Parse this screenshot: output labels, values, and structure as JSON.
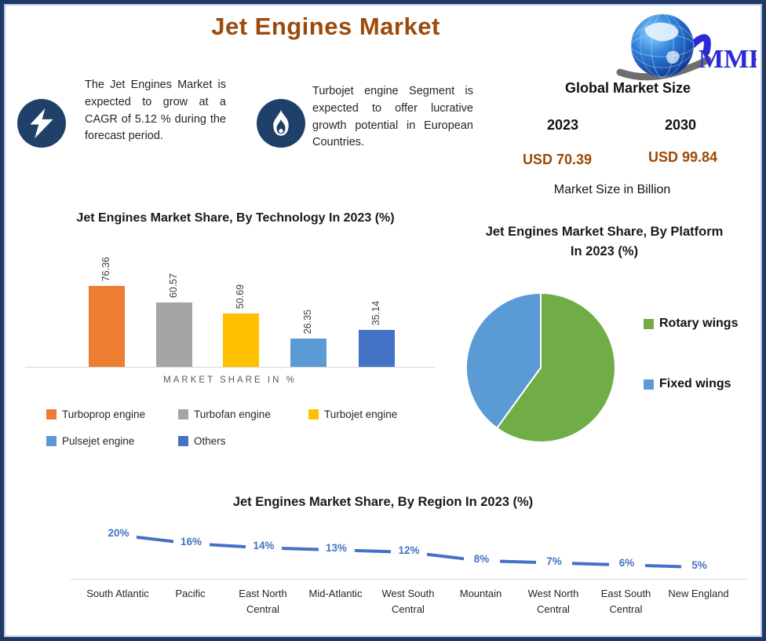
{
  "header": {
    "title": "Jet Engines Market",
    "logo_text": "MMR"
  },
  "callouts": [
    {
      "icon": "lightning-icon",
      "text": "The Jet Engines Market is expected to grow at a CAGR of 5.12 % during the forecast period."
    },
    {
      "icon": "flame-icon",
      "text": "Turbojet engine Segment is expected to offer lucrative growth potential in European Countries."
    }
  ],
  "market_size": {
    "heading": "Global Market Size",
    "years": [
      "2023",
      "2030"
    ],
    "values": [
      "USD 70.39",
      "USD 99.84"
    ],
    "note": "Market Size in Billion"
  },
  "chart_data": [
    {
      "type": "bar",
      "title": "Jet Engines Market Share, By Technology In 2023 (%)",
      "categories": [
        "Turboprop engine",
        "Turbofan engine",
        "Turbojet engine",
        "Pulsejet engine",
        "Others"
      ],
      "values": [
        76.36,
        60.57,
        50.69,
        26.35,
        35.14
      ],
      "colors": [
        "#ED7D31",
        "#A5A5A5",
        "#FFC000",
        "#5B9BD5",
        "#4472C4"
      ],
      "xlabel": "MARKET SHARE IN %",
      "ylim": [
        0,
        90
      ],
      "grid": false,
      "legend_position": "bottom"
    },
    {
      "type": "pie",
      "title": "Jet Engines Market Share, By Platform In 2023 (%)",
      "slices": [
        {
          "label": "Rotary wings",
          "value": 60,
          "color": "#70AD47"
        },
        {
          "label": "Fixed wings",
          "value": 40,
          "color": "#5B9BD5"
        }
      ],
      "legend_position": "right"
    },
    {
      "type": "line",
      "title": "Jet Engines Market Share, By Region In 2023 (%)",
      "categories": [
        "South Atlantic",
        "Pacific",
        "East North Central",
        "Mid-Atlantic",
        "West South Central",
        "Mountain",
        "West North Central",
        "East South Central",
        "New England"
      ],
      "values": [
        20,
        16,
        14,
        13,
        12,
        8,
        7,
        6,
        5
      ],
      "labels": [
        "20%",
        "16%",
        "14%",
        "13%",
        "12%",
        "8%",
        "7%",
        "6%",
        "5%"
      ],
      "color": "#4472C4",
      "grid": false,
      "data_labels": "on-line"
    }
  ]
}
